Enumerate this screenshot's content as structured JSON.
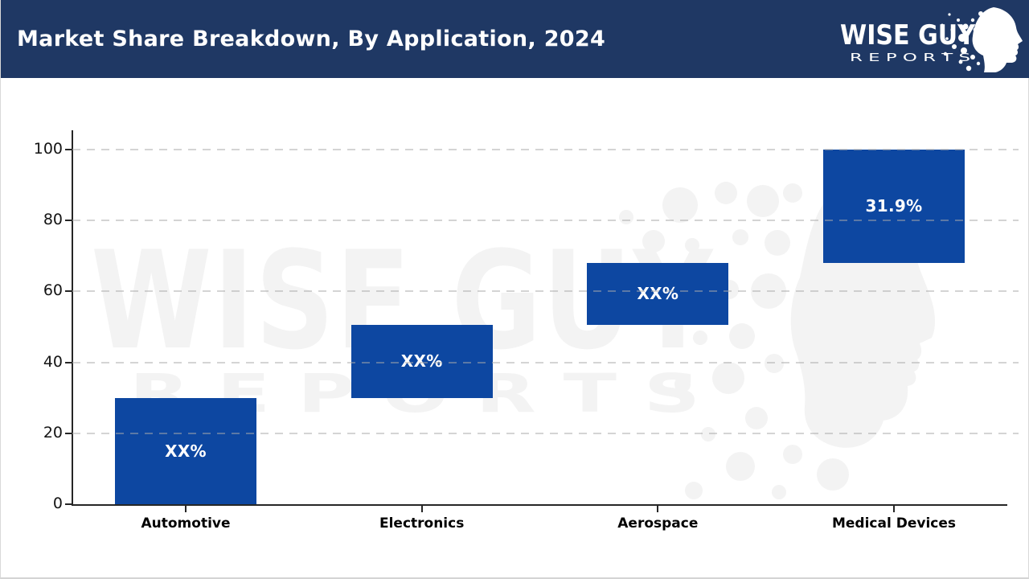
{
  "header": {
    "title": "Market Share Breakdown, By Application, 2024",
    "logo": {
      "line1": "WISE GUY",
      "line2": "R E P O R T S"
    }
  },
  "watermark": {
    "line1": "WISE GUY",
    "line2": "R E P O R T S"
  },
  "chart_data": {
    "type": "bar",
    "subtype": "floating-waterfall",
    "title": "Market Share Breakdown, By Application, 2024",
    "categories": [
      "Automotive",
      "Electronics",
      "Aerospace",
      "Medical Devices"
    ],
    "segments": [
      {
        "category": "Automotive",
        "start": 0,
        "end": 30,
        "label": "XX%"
      },
      {
        "category": "Electronics",
        "start": 30,
        "end": 50.6,
        "label": "XX%"
      },
      {
        "category": "Aerospace",
        "start": 50.6,
        "end": 68.1,
        "label": "XX%"
      },
      {
        "category": "Medical Devices",
        "start": 68.1,
        "end": 100,
        "label": "31.9%"
      }
    ],
    "xlabel": "",
    "ylabel": "",
    "ylim": [
      0,
      100
    ],
    "yticks": [
      0,
      20,
      40,
      60,
      80,
      100
    ],
    "grid": "horizontal-dashed",
    "legend": "none",
    "colors": {
      "bar": "#0d47a1",
      "bar_label": "#ffffff",
      "header_bg": "#1f3864",
      "grid": "#d9d9d9",
      "axis": "#262626",
      "watermark": "#f3f3f3"
    }
  }
}
